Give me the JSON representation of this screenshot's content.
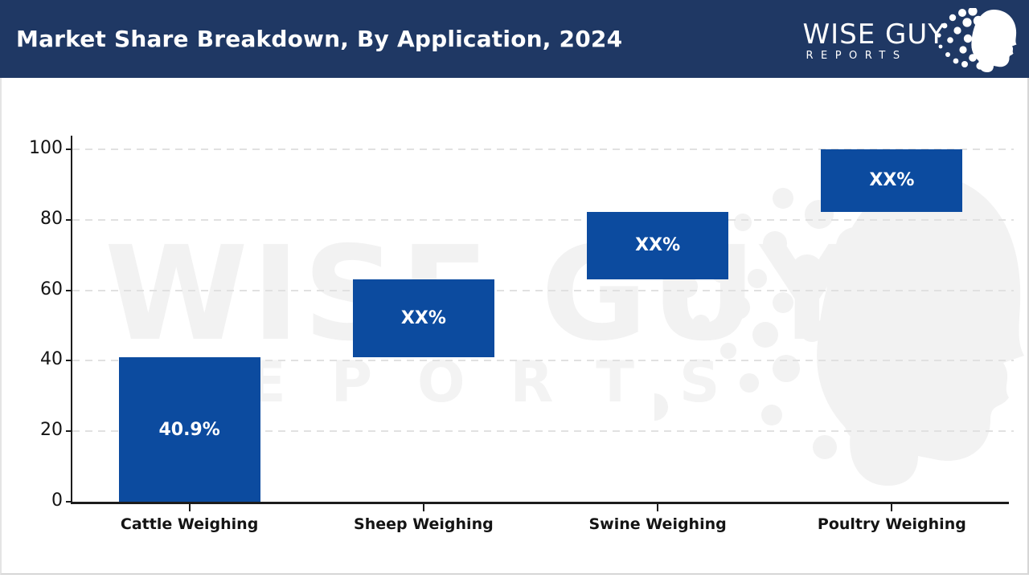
{
  "header": {
    "title": "Market Share Breakdown, By Application, 2024",
    "logo": {
      "brand": "WISE GUY",
      "sub": "REPORTS"
    }
  },
  "watermark": {
    "line1": "WISE GUY",
    "line2": "REPORTS"
  },
  "chart_data": {
    "type": "bar",
    "subtype": "waterfall",
    "title": "Market Share Breakdown, By Application, 2024",
    "categories": [
      "Cattle Weighing",
      "Sheep Weighing",
      "Swine Weighing",
      "Poultry Weighing"
    ],
    "segments": [
      {
        "category": "Cattle Weighing",
        "start": 0,
        "end": 40.9,
        "label": "40.9%"
      },
      {
        "category": "Sheep Weighing",
        "start": 40.9,
        "end": 63.2,
        "label": "XX%"
      },
      {
        "category": "Swine Weighing",
        "start": 63.2,
        "end": 82.3,
        "label": "XX%"
      },
      {
        "category": "Poultry Weighing",
        "start": 82.3,
        "end": 100,
        "label": "XX%"
      }
    ],
    "yticks": [
      0,
      20,
      40,
      60,
      80,
      100
    ],
    "ylim": [
      0,
      100
    ],
    "xlabel": "",
    "ylabel": "",
    "legend": "none",
    "grid": "horizontal-dashed",
    "bar_color": "#0c4b9f",
    "bar_label_color": "#ffffff",
    "header_color": "#1f3864"
  }
}
